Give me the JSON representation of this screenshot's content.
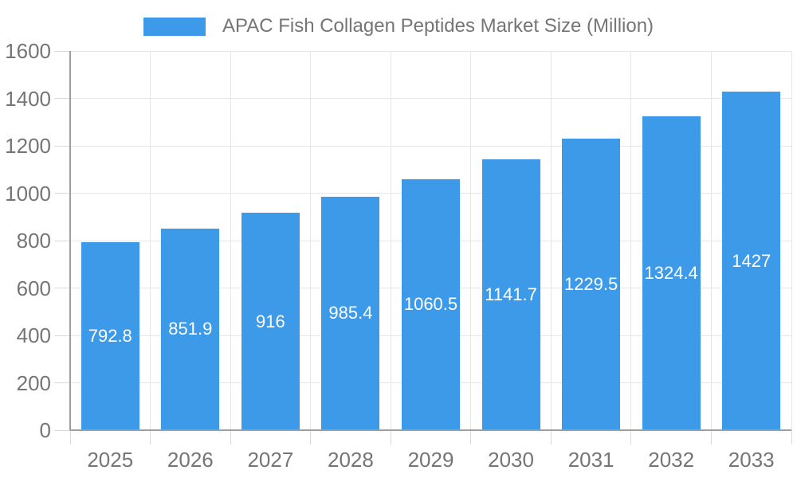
{
  "chart_data": {
    "type": "bar",
    "title": "APAC Fish Collagen Peptides Market Size (Million)",
    "categories": [
      "2025",
      "2026",
      "2027",
      "2028",
      "2029",
      "2030",
      "2031",
      "2032",
      "2033"
    ],
    "values": [
      792.8,
      851.9,
      916,
      985.4,
      1060.5,
      1141.7,
      1229.5,
      1324.4,
      1427
    ],
    "bar_labels": [
      "792.8",
      "851.9",
      "916",
      "985.4",
      "1060.5",
      "1141.7",
      "1229.5",
      "1324.4",
      "1427"
    ],
    "xlabel": "",
    "ylabel": "",
    "ylim": [
      0,
      1600
    ],
    "ytick_interval": 200,
    "yticks": [
      0,
      200,
      400,
      600,
      800,
      1000,
      1200,
      1400,
      1600
    ],
    "grid": true,
    "legend_position": "top",
    "value_label_position": "inside-center",
    "colors": {
      "bar": "#3d9ae9",
      "bar_label": "#ffffff",
      "axis_label": "#757575",
      "gridline": "#e6e6e6",
      "tick": "#d9d9d9",
      "axis_line": "#9e9e9e",
      "background": "#ffffff"
    }
  }
}
